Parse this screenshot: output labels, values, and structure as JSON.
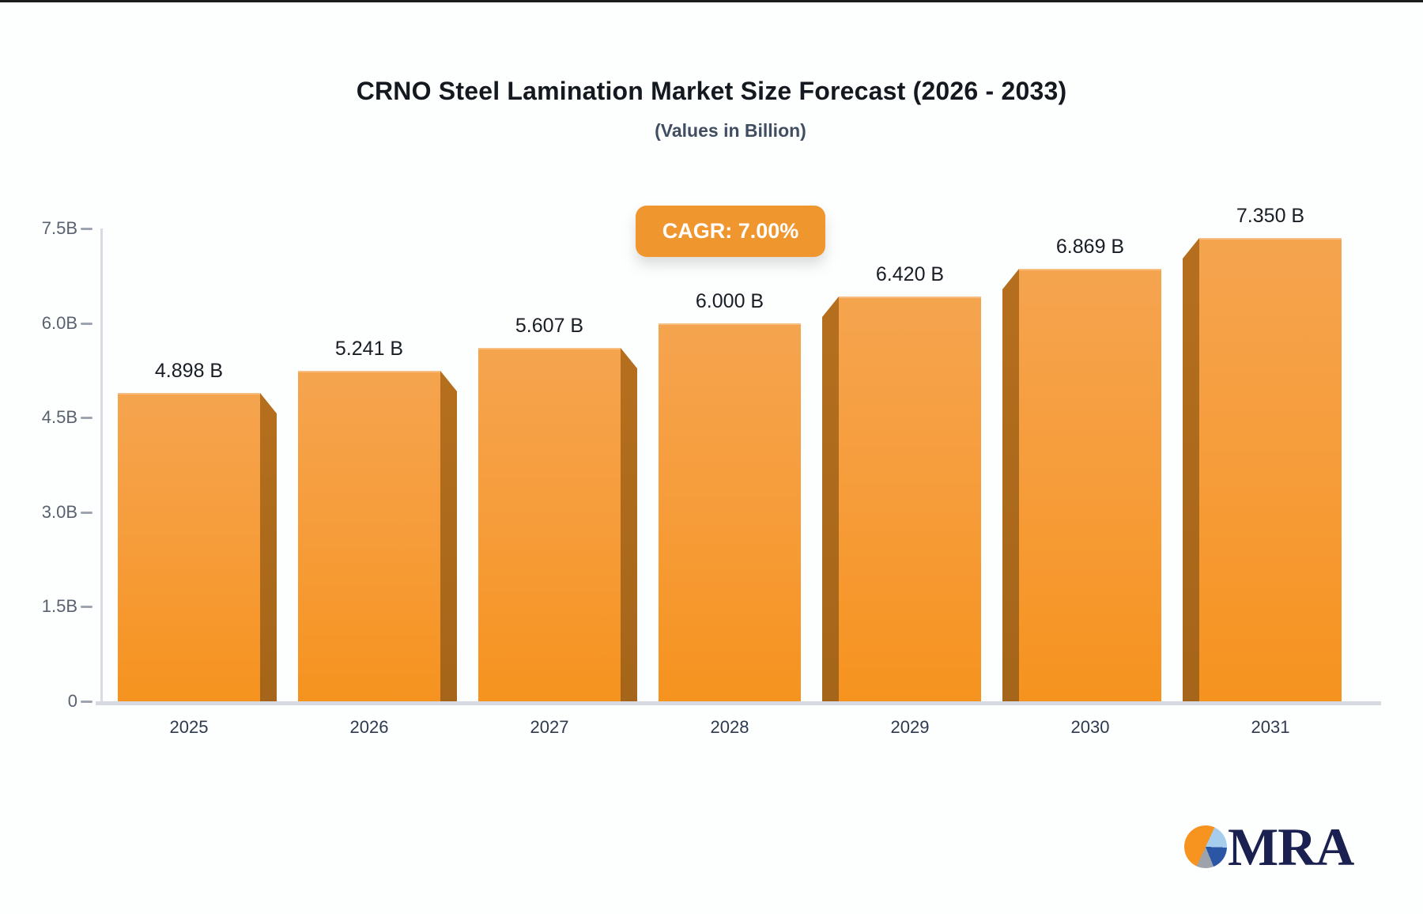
{
  "chart_data": {
    "type": "bar",
    "title": "CRNO Steel Lamination Market Size Forecast (2026 - 2033)",
    "subtitle": "(Values in Billion)",
    "annotation": "CAGR: 7.00%",
    "categories": [
      "2025",
      "2026",
      "2027",
      "2028",
      "2029",
      "2030",
      "2031"
    ],
    "values": [
      4.898,
      5.241,
      5.607,
      6.0,
      6.42,
      6.869,
      7.35
    ],
    "value_labels": [
      "4.898 B",
      "5.241 B",
      "5.607 B",
      "6.000 B",
      "6.420 B",
      "6.869 B",
      "7.350 B"
    ],
    "xlabel": "",
    "ylabel": "",
    "y_ticks": [
      {
        "label": "7.5B",
        "value": 7.5
      },
      {
        "label": "6.0B",
        "value": 6.0
      },
      {
        "label": "4.5B",
        "value": 4.5
      },
      {
        "label": "3.0B",
        "value": 3.0
      },
      {
        "label": "1.5B",
        "value": 1.5
      },
      {
        "label": "0",
        "value": 0
      }
    ],
    "ylim": [
      0,
      7.5
    ],
    "grid": false,
    "legend": "none",
    "colors": {
      "bar_gradient_top": "#F5A44F",
      "bar_gradient_mid": "#F69D3C",
      "bar_gradient_bottom": "#F6931F",
      "bar_side": "#B56F1E",
      "bar_side_dark": "#A5651A",
      "badge_bg": "#F0962F",
      "badge_text": "#FFFFFF",
      "axis_line": "#D8DCE2",
      "value_label": "#191D25",
      "category_label": "#2E3A4E",
      "tick_label": "#5A6270"
    }
  },
  "logo": {
    "text": "MRA",
    "text_color": "#1A2150",
    "pie_colors": {
      "orange": "#F6941F",
      "light_blue": "#A7CDEC",
      "dark_blue": "#2B55A5",
      "gray": "#9EA3AB"
    }
  }
}
